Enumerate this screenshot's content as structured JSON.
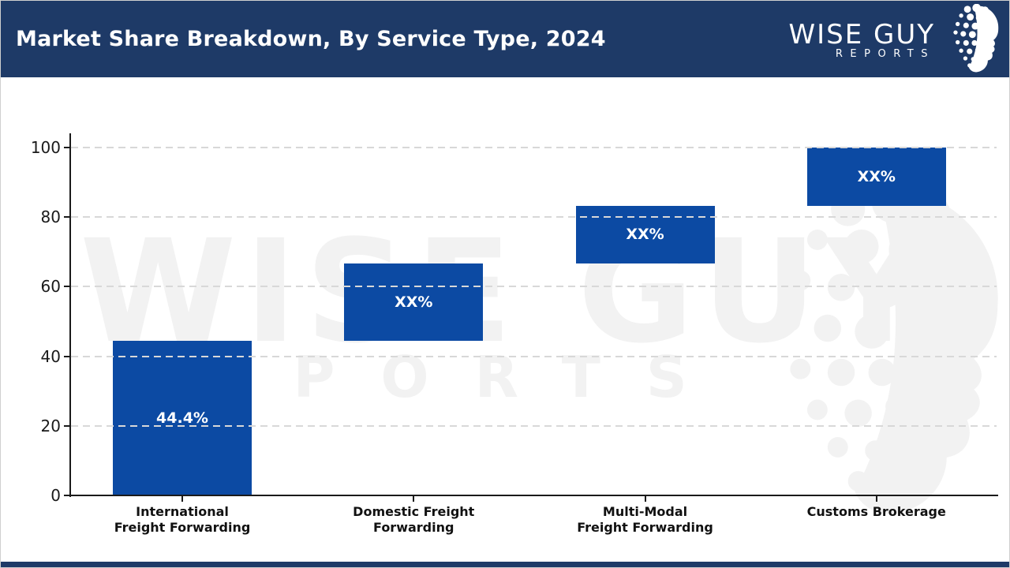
{
  "header": {
    "title": "Market Share Breakdown, By Service Type, 2024",
    "logo": {
      "line1": "WISE GUY",
      "line2": "REPORTS"
    }
  },
  "watermark": {
    "line1": "WISE GUY",
    "line2": "REPORTS"
  },
  "chart_data": {
    "type": "bar",
    "subtype": "waterfall",
    "title": "Market Share Breakdown, By Service Type, 2024",
    "categories": [
      [
        "International",
        "Freight Forwarding"
      ],
      [
        "Domestic Freight",
        "Forwarding"
      ],
      [
        "Multi-Modal",
        "Freight Forwarding"
      ],
      [
        "Customs Brokerage"
      ]
    ],
    "segments": [
      {
        "category": "International Freight Forwarding",
        "start": 0,
        "end": 44.4,
        "label": "44.4%"
      },
      {
        "category": "Domestic Freight Forwarding",
        "start": 44.4,
        "end": 66.6,
        "label": "XX%"
      },
      {
        "category": "Multi-Modal Freight Forwarding",
        "start": 66.6,
        "end": 83.3,
        "label": "XX%"
      },
      {
        "category": "Customs Brokerage",
        "start": 83.3,
        "end": 100,
        "label": "XX%"
      }
    ],
    "ylim": [
      0,
      100
    ],
    "yticks": [
      0,
      20,
      40,
      60,
      80,
      100
    ],
    "xlabel": "",
    "ylabel": "",
    "grid": "horizontal-dashed",
    "legend": "none",
    "bar_color": "#0c4aa3",
    "bar_label_color": "#ffffff"
  },
  "colors": {
    "header_bg": "#1e3a67",
    "bar": "#0c4aa3",
    "watermark": "#f2f2f2",
    "gridline": "#d8d8d8",
    "axis": "#1a1a1a"
  }
}
